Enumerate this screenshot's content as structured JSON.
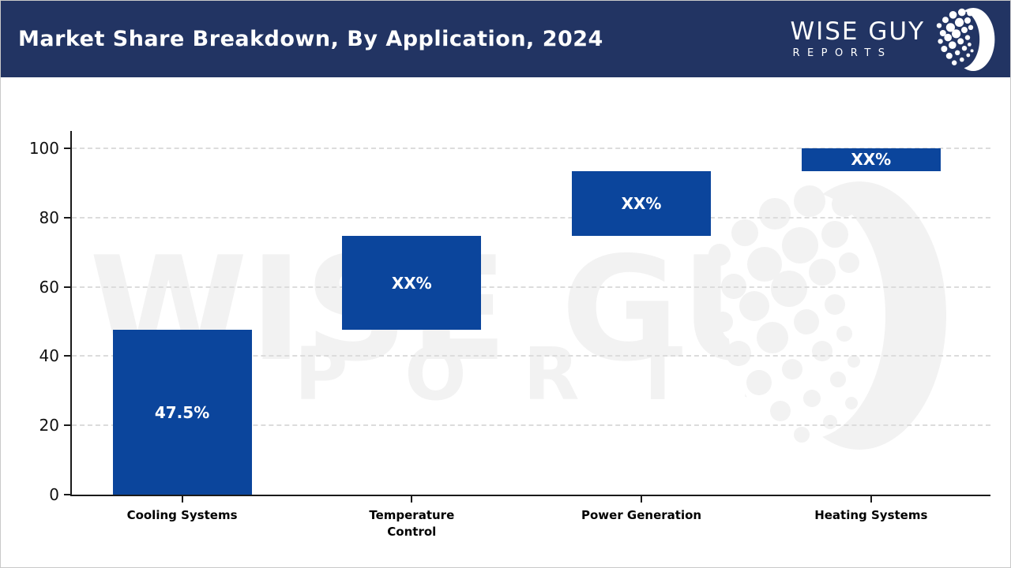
{
  "header": {
    "title": "Market Share Breakdown, By Application, 2024",
    "bg_color": "#223463",
    "brand": {
      "name": "WISE GUY",
      "sub": "REPORTS"
    }
  },
  "watermark": {
    "line1": "WISE GUY",
    "line2": "PORTS"
  },
  "chart_data": {
    "type": "bar",
    "subtype": "waterfall",
    "title": "Market Share Breakdown, By Application, 2024",
    "categories": [
      "Cooling Systems",
      "Temperature Control",
      "Power Generation",
      "Heating Systems"
    ],
    "tick_label_lines": [
      [
        "Cooling Systems"
      ],
      [
        "Temperature",
        "Control"
      ],
      [
        "Power Generation"
      ],
      [
        "Heating Systems"
      ]
    ],
    "segments": [
      {
        "category": "Cooling Systems",
        "start": 0,
        "end": 47.5,
        "label": "47.5%"
      },
      {
        "category": "Temperature Control",
        "start": 47.5,
        "end": 74.7,
        "label": "XX%"
      },
      {
        "category": "Power Generation",
        "start": 74.7,
        "end": 93.4,
        "label": "XX%"
      },
      {
        "category": "Heating Systems",
        "start": 93.4,
        "end": 100,
        "label": "XX%"
      }
    ],
    "yticks": [
      0,
      20,
      40,
      60,
      80,
      100
    ],
    "ylim": [
      0,
      105
    ],
    "xlabel": "",
    "ylabel": "",
    "legend": "none",
    "grid": "horizontal-dashed",
    "bar_color": "#0b459c",
    "bar_label_color": "#ffffff",
    "axis_color": "#1a1a1a",
    "grid_color": "#dcdcdc"
  }
}
